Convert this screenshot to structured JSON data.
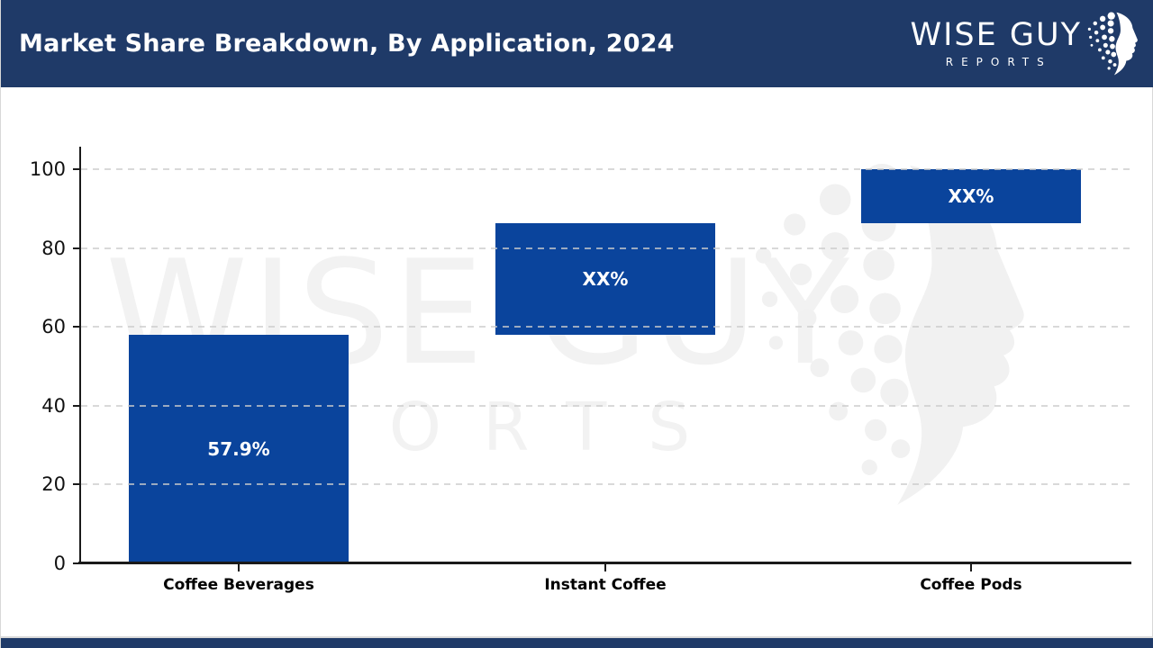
{
  "header": {
    "title": "Market Share Breakdown, By Application, 2024",
    "bg_color": "#1f3a68",
    "logo": {
      "name_line": "WISE GUY",
      "sub_line": "REPORTS"
    }
  },
  "watermark": {
    "name_line": "WISE GUY",
    "sub_line": "REPORTS"
  },
  "chart_data": {
    "type": "bar",
    "subtype": "floating-waterfall-segments",
    "title": "Market Share Breakdown, By Application, 2024",
    "categories": [
      "Coffee Beverages",
      "Instant Coffee",
      "Coffee Pods"
    ],
    "series": [
      {
        "name": "Market Share",
        "segments": [
          {
            "category": "Coffee Beverages",
            "start": 0,
            "end": 57.9,
            "label": "57.9%"
          },
          {
            "category": "Instant Coffee",
            "start": 57.9,
            "end": 86.4,
            "label": "XX%"
          },
          {
            "category": "Coffee Pods",
            "start": 86.4,
            "end": 100,
            "label": "XX%"
          }
        ]
      }
    ],
    "xlabel": "",
    "ylabel": "",
    "ylim": [
      0,
      100
    ],
    "yticks": [
      0,
      20,
      40,
      60,
      80,
      100
    ],
    "grid": "horizontal-dashed",
    "legend": "none",
    "bar_color": "#0a449c",
    "bar_label_color": "#ffffff"
  },
  "footer": {
    "bg_color": "#1f3a68"
  }
}
